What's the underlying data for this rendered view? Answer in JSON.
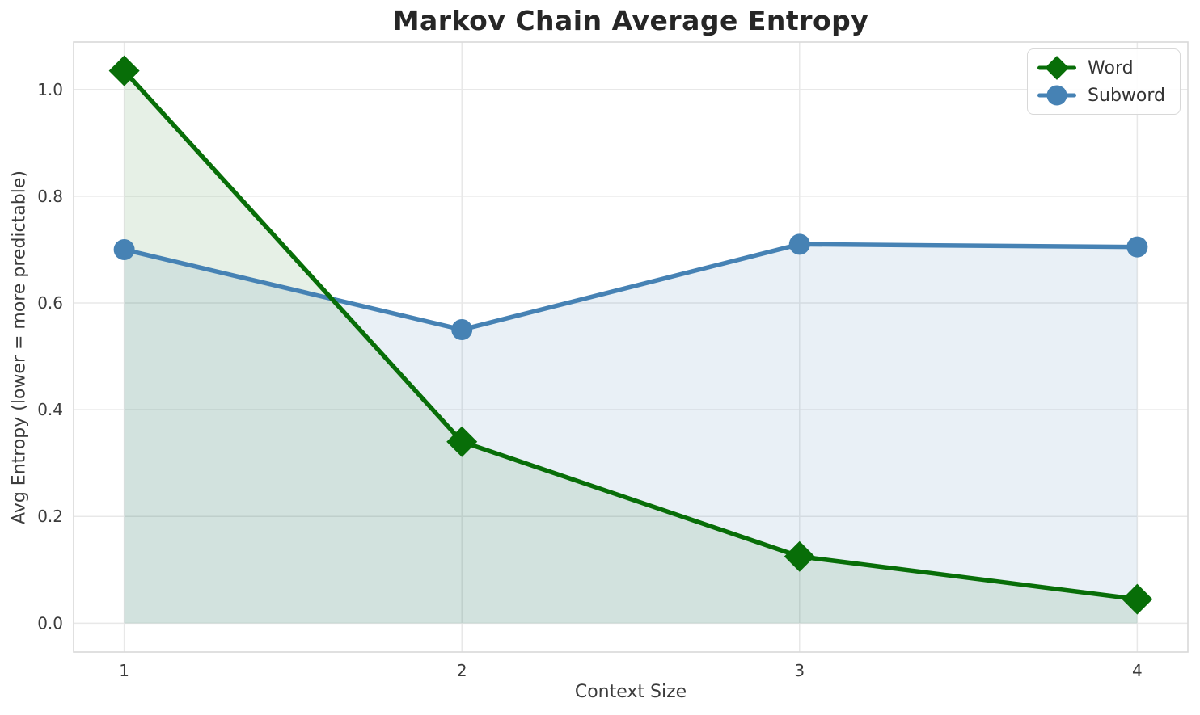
{
  "title": "Markov Chain Average Entropy",
  "chart_data": {
    "type": "line",
    "title": "Markov Chain Average Entropy",
    "xlabel": "Context Size",
    "ylabel": "Avg Entropy (lower = more predictable)",
    "x": [
      1,
      2,
      3,
      4
    ],
    "series": [
      {
        "name": "Word",
        "color": "#086e08",
        "fill": "rgba(8, 110, 8, 0.10)",
        "marker": "diamond",
        "values": [
          1.035,
          0.34,
          0.125,
          0.045
        ]
      },
      {
        "name": "Subword",
        "color": "#4682b4",
        "fill": "rgba(70, 130, 180, 0.12)",
        "marker": "circle",
        "values": [
          0.7,
          0.55,
          0.71,
          0.705
        ]
      }
    ],
    "xticks": [
      1,
      2,
      3,
      4
    ],
    "xtick_labels": [
      "1",
      "2",
      "3",
      "4"
    ],
    "yticks": [
      0.0,
      0.2,
      0.4,
      0.6,
      0.8,
      1.0
    ],
    "ytick_labels": [
      "0.0",
      "0.2",
      "0.4",
      "0.6",
      "0.8",
      "1.0"
    ],
    "xlim": [
      0.85,
      4.15
    ],
    "ylim": [
      -0.054,
      1.089
    ],
    "fill_baseline": 0,
    "grid": true,
    "legend_position": "upper right"
  }
}
